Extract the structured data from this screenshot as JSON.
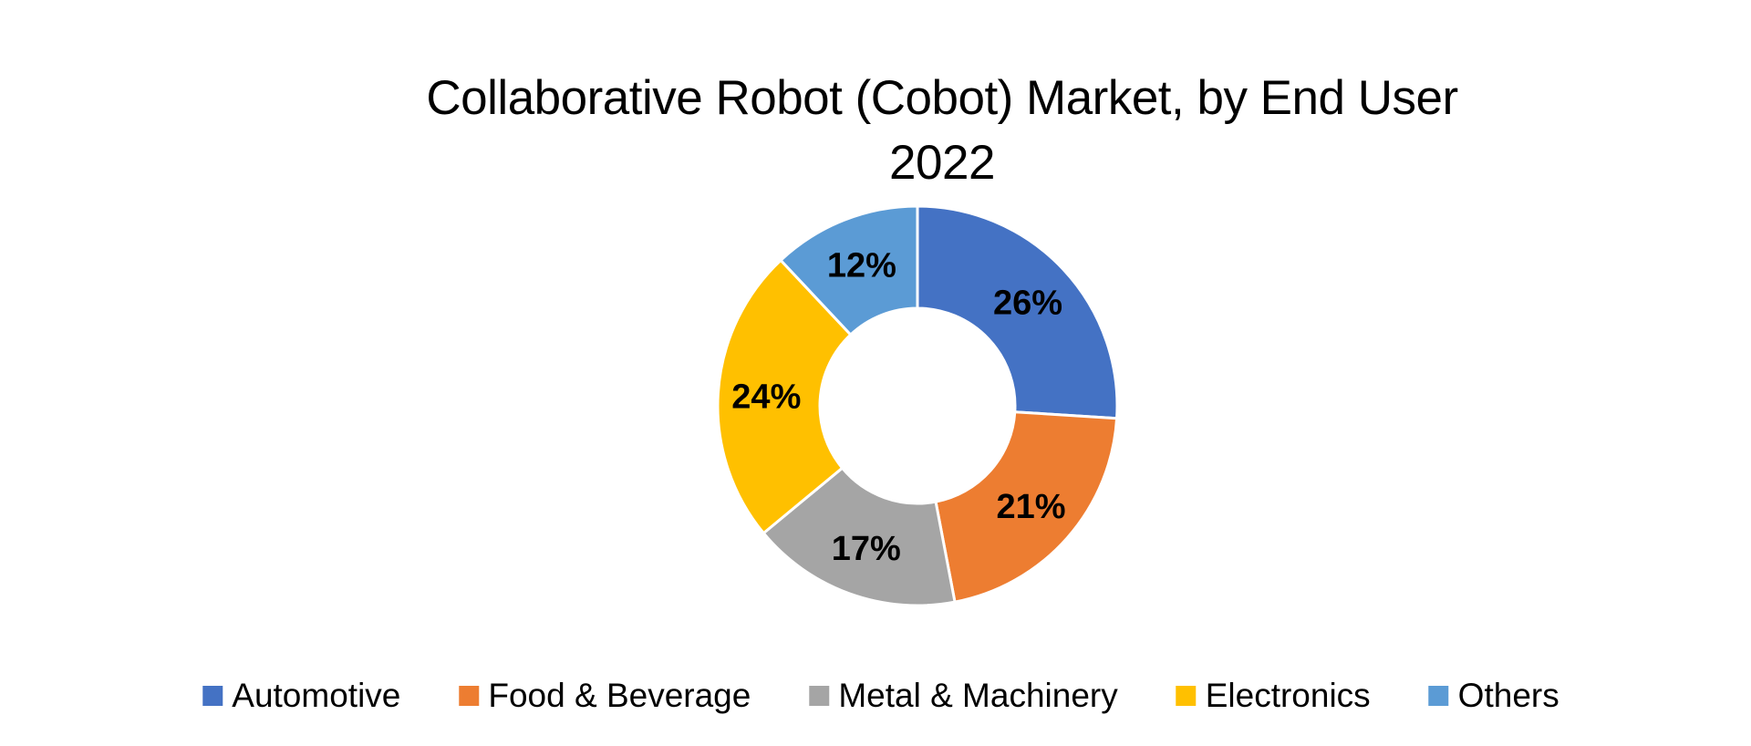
{
  "title": {
    "line1": "Collaborative Robot (Cobot) Market, by End User",
    "line2": "2022"
  },
  "chart_data": {
    "type": "pie",
    "subtype": "donut",
    "title": "Collaborative Robot (Cobot) Market, by End User 2022",
    "unit": "%",
    "categories": [
      "Automotive",
      "Food & Beverage",
      "Metal & Machinery",
      "Electronics",
      "Others"
    ],
    "values": [
      26,
      21,
      17,
      24,
      12
    ],
    "data_labels": [
      "26%",
      "21%",
      "17%",
      "24%",
      "12%"
    ],
    "colors": [
      "#4472C4",
      "#ED7D31",
      "#A5A5A5",
      "#FFC000",
      "#5B9BD5"
    ],
    "start_angle_deg": 0,
    "direction": "clockwise",
    "inner_radius_ratio": 0.49,
    "legend_position": "bottom",
    "data_label_color": "#000000",
    "slice_border_color": "#ffffff"
  }
}
